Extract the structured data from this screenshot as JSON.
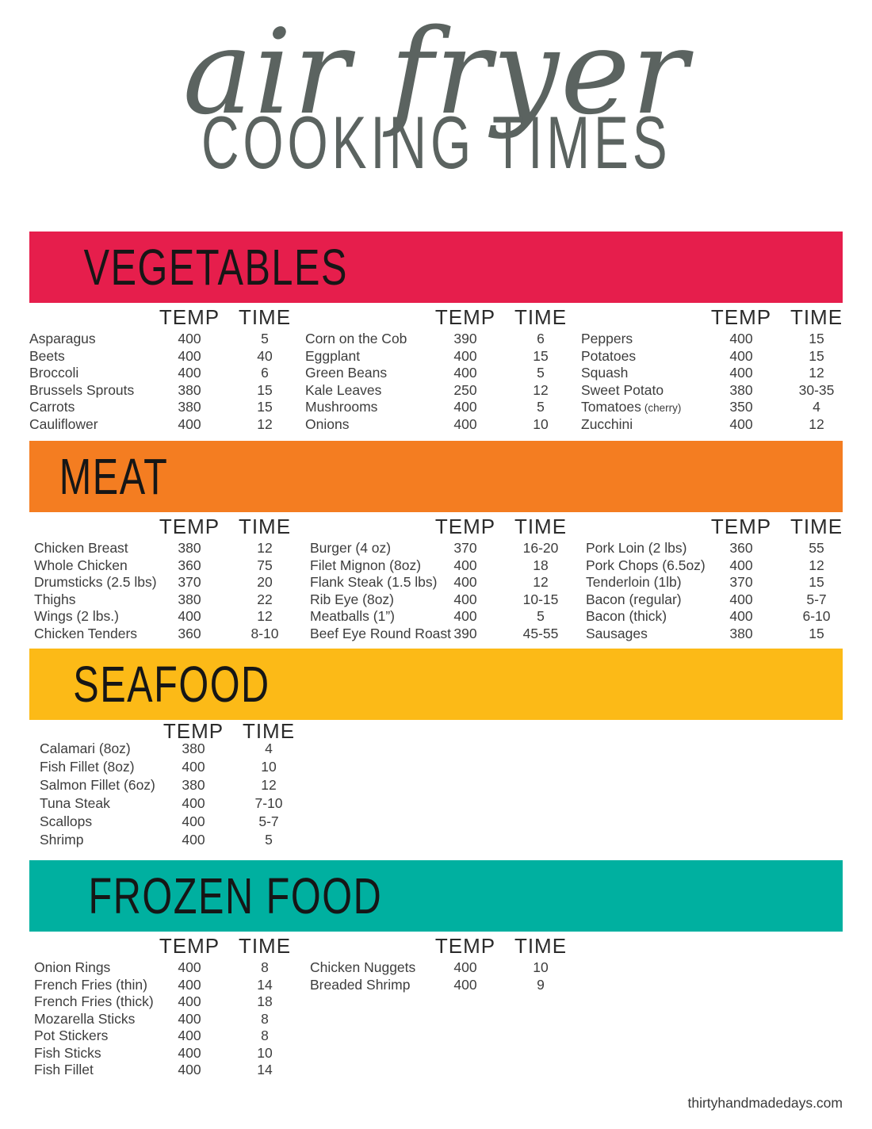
{
  "title": {
    "script_line": "air fryer",
    "block_line": "COOKING TIMES",
    "color": "#5b6360"
  },
  "column_headers": {
    "temp": "TEMP",
    "time": "TIME"
  },
  "sections": [
    {
      "name": "VEGETABLES",
      "color": "#e61e4c",
      "columns": [
        {
          "rows": [
            {
              "label": "Asparagus",
              "temp": "400",
              "time": "5"
            },
            {
              "label": "Beets",
              "temp": "400",
              "time": "40"
            },
            {
              "label": "Broccoli",
              "temp": "400",
              "time": "6"
            },
            {
              "label": "Brussels Sprouts",
              "temp": "380",
              "time": "15"
            },
            {
              "label": "Carrots",
              "temp": "380",
              "time": "15"
            },
            {
              "label": "Cauliflower",
              "temp": "400",
              "time": "12"
            }
          ]
        },
        {
          "rows": [
            {
              "label": "Corn on the Cob",
              "temp": "390",
              "time": "6"
            },
            {
              "label": "Eggplant",
              "temp": "400",
              "time": "15"
            },
            {
              "label": "Green Beans",
              "temp": "400",
              "time": "5"
            },
            {
              "label": "Kale Leaves",
              "temp": "250",
              "time": "12"
            },
            {
              "label": "Mushrooms",
              "temp": "400",
              "time": "5"
            },
            {
              "label": "Onions",
              "temp": "400",
              "time": "10"
            }
          ]
        },
        {
          "rows": [
            {
              "label": "Peppers",
              "temp": "400",
              "time": "15"
            },
            {
              "label": "Potatoes",
              "temp": "400",
              "time": "15"
            },
            {
              "label": "Squash",
              "temp": "400",
              "time": "12"
            },
            {
              "label": "Sweet Potato",
              "temp": "380",
              "time": "30-35"
            },
            {
              "label": "Tomatoes",
              "note": "(cherry)",
              "temp": "350",
              "time": "4"
            },
            {
              "label": "Zucchini",
              "temp": "400",
              "time": "12"
            }
          ]
        }
      ]
    },
    {
      "name": "MEAT",
      "color": "#f47d21",
      "columns": [
        {
          "rows": [
            {
              "label": "Chicken Breast",
              "temp": "380",
              "time": "12"
            },
            {
              "label": "Whole Chicken",
              "temp": "360",
              "time": "75"
            },
            {
              "label": "Drumsticks (2.5 lbs)",
              "temp": "370",
              "time": "20"
            },
            {
              "label": "Thighs",
              "temp": "380",
              "time": "22"
            },
            {
              "label": "Wings (2 lbs.)",
              "temp": "400",
              "time": "12"
            },
            {
              "label": "Chicken Tenders",
              "temp": "360",
              "time": "8-10"
            }
          ]
        },
        {
          "rows": [
            {
              "label": "Burger (4 oz)",
              "temp": "370",
              "time": "16-20"
            },
            {
              "label": "Filet Mignon (8oz)",
              "temp": "400",
              "time": "18"
            },
            {
              "label": "Flank Steak (1.5 lbs)",
              "temp": "400",
              "time": "12"
            },
            {
              "label": "Rib Eye (8oz)",
              "temp": "400",
              "time": "10-15"
            },
            {
              "label": "Meatballs (1”)",
              "temp": "400",
              "time": "5"
            },
            {
              "label": "Beef Eye Round Roast",
              "temp": "390",
              "time": "45-55"
            }
          ]
        },
        {
          "rows": [
            {
              "label": "Pork Loin (2 lbs)",
              "temp": "360",
              "time": "55"
            },
            {
              "label": "Pork Chops (6.5oz)",
              "temp": "400",
              "time": "12"
            },
            {
              "label": "Tenderloin (1lb)",
              "temp": "370",
              "time": "15"
            },
            {
              "label": "Bacon (regular)",
              "temp": "400",
              "time": "5-7"
            },
            {
              "label": "Bacon (thick)",
              "temp": "400",
              "time": "6-10"
            },
            {
              "label": "Sausages",
              "temp": "380",
              "time": "15"
            }
          ]
        }
      ]
    },
    {
      "name": "SEAFOOD",
      "color": "#fcba17",
      "columns": [
        {
          "rows": [
            {
              "label": "Calamari (8oz)",
              "temp": "380",
              "time": "4"
            },
            {
              "label": "Fish Fillet (8oz)",
              "temp": "400",
              "time": "10"
            },
            {
              "label": "Salmon Fillet (6oz)",
              "temp": "380",
              "time": "12"
            },
            {
              "label": "Tuna Steak",
              "temp": "400",
              "time": "7-10"
            },
            {
              "label": "Scallops",
              "temp": "400",
              "time": "5-7"
            },
            {
              "label": "Shrimp",
              "temp": "400",
              "time": "5"
            }
          ]
        }
      ]
    },
    {
      "name": "FROZEN FOOD",
      "color": "#00b0a0",
      "columns": [
        {
          "rows": [
            {
              "label": "Onion Rings",
              "temp": "400",
              "time": "8"
            },
            {
              "label": "French Fries (thin)",
              "temp": "400",
              "time": "14"
            },
            {
              "label": "French Fries (thick)",
              "temp": "400",
              "time": "18"
            },
            {
              "label": "Mozarella Sticks",
              "temp": "400",
              "time": "8"
            },
            {
              "label": "Pot Stickers",
              "temp": "400",
              "time": "8"
            },
            {
              "label": "Fish Sticks",
              "temp": "400",
              "time": "10"
            },
            {
              "label": "Fish Fillet",
              "temp": "400",
              "time": "14"
            }
          ]
        },
        {
          "rows": [
            {
              "label": "Chicken Nuggets",
              "temp": "400",
              "time": "10"
            },
            {
              "label": "Breaded Shrimp",
              "temp": "400",
              "time": "9"
            }
          ]
        }
      ]
    }
  ],
  "footer": {
    "website": "thirtyhandmadedays.com"
  }
}
